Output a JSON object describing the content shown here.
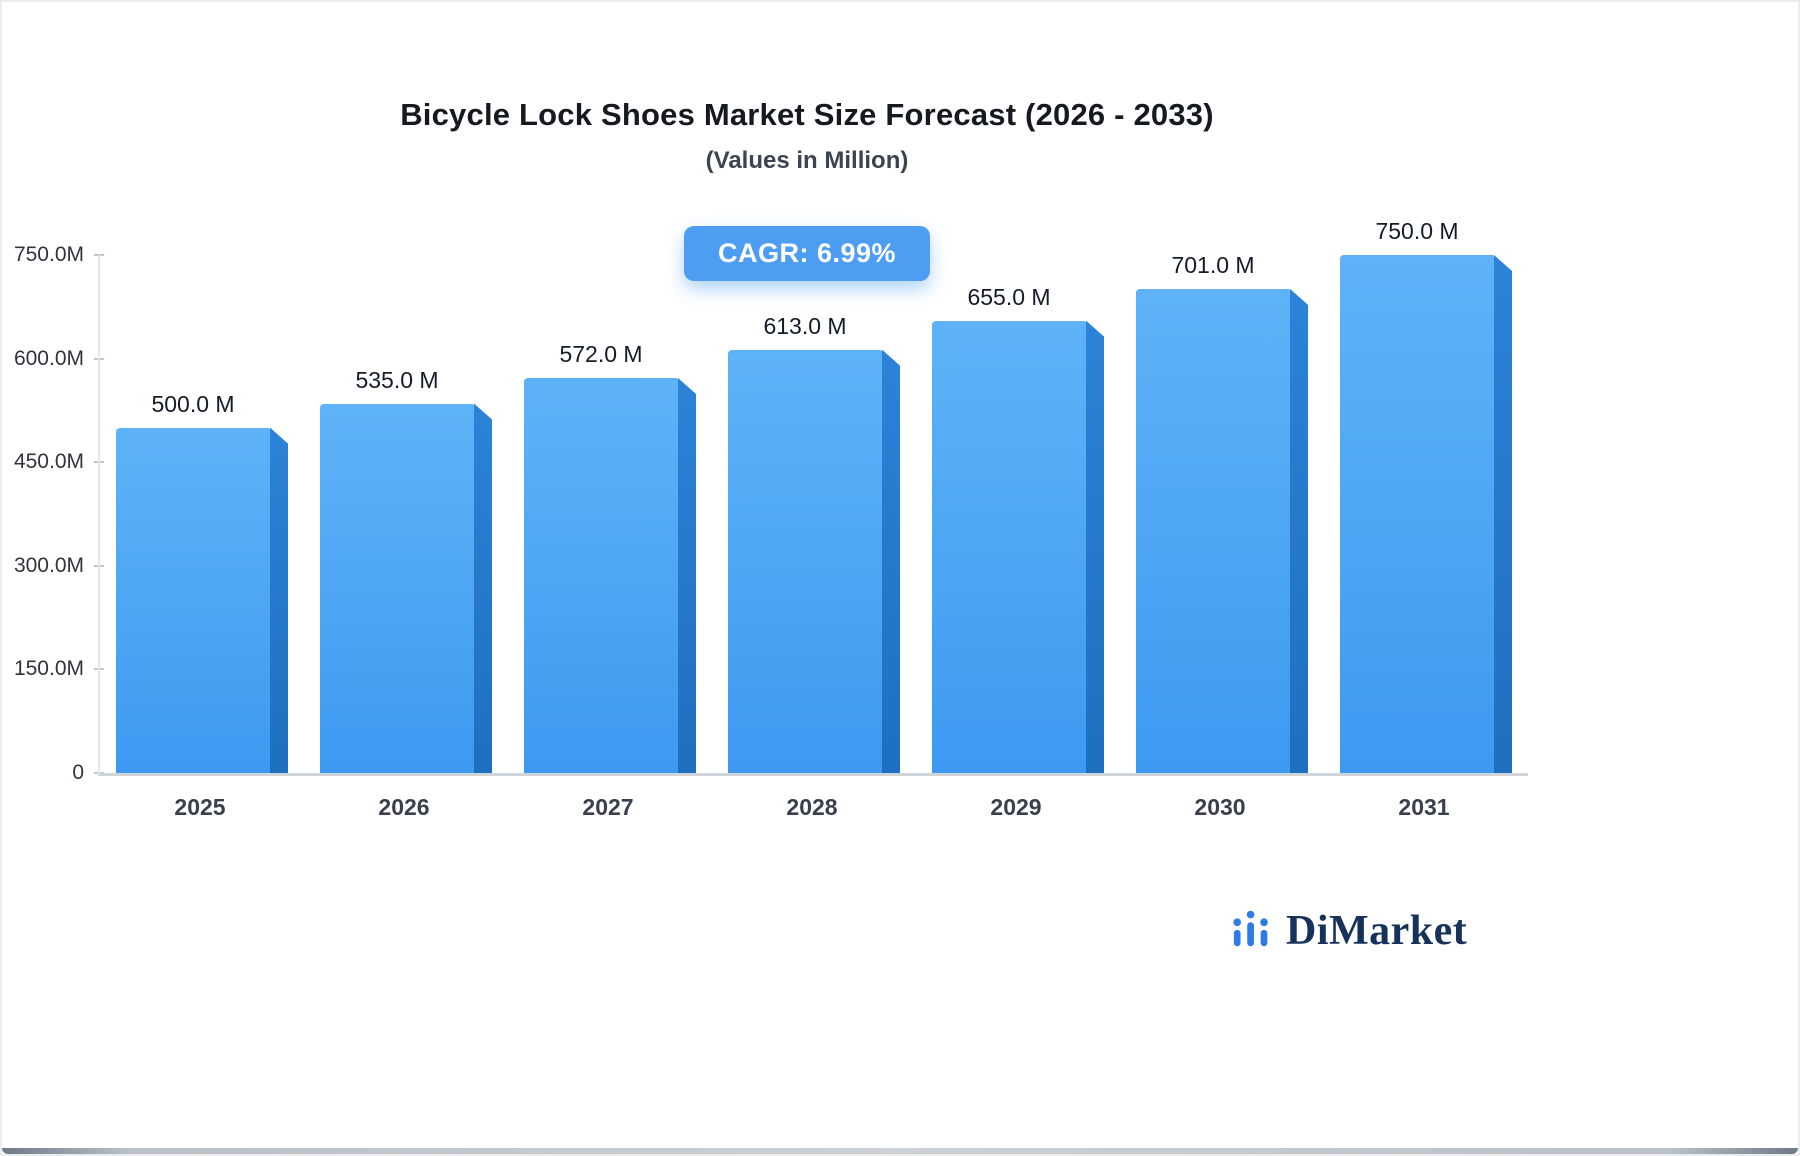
{
  "chart_data": {
    "type": "bar",
    "title": "Bicycle Lock Shoes Market Size Forecast (2026 - 2033)",
    "subtitle": "(Values in Million)",
    "cagr_label": "CAGR: 6.99%",
    "categories": [
      "2025",
      "2026",
      "2027",
      "2028",
      "2029",
      "2030",
      "2031"
    ],
    "values": [
      500.0,
      535.0,
      572.0,
      613.0,
      655.0,
      701.0,
      750.0
    ],
    "value_labels": [
      "500.0 M",
      "535.0 M",
      "572.0 M",
      "613.0 M",
      "655.0 M",
      "701.0 M",
      "750.0 M"
    ],
    "ylabel_ticks": [
      "750.0M",
      "600.0M",
      "450.0M",
      "300.0M",
      "150.0M",
      "0"
    ],
    "ylim": [
      0,
      750
    ],
    "xlabel": "",
    "ylabel": "",
    "legend": "none",
    "grid": "off"
  },
  "branding": {
    "logo_text": "DiMarket",
    "logo_icon": "bar-chart-icon"
  },
  "colors": {
    "bar_face_top": "#5fb2f7",
    "bar_face_bottom": "#3d9af1",
    "bar_side": "#1f6fc0",
    "badge_background": "#4d9ef2",
    "badge_text": "#ffffff",
    "title_text": "#151a21",
    "logo_navy": "#16325a"
  }
}
